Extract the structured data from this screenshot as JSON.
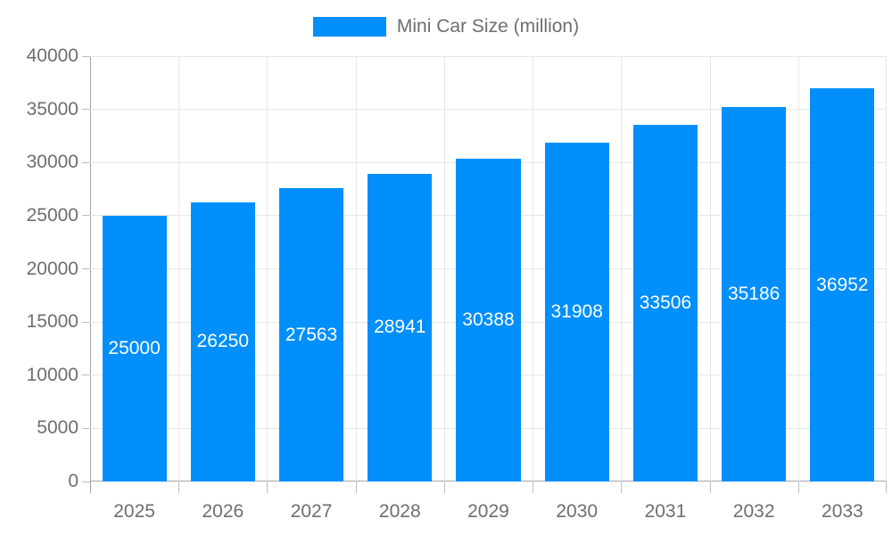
{
  "chart_data": {
    "type": "bar",
    "title": "",
    "legend": {
      "position": "top",
      "label": "Mini Car Size (million)"
    },
    "series": [
      {
        "name": "Mini Car Size (million)",
        "values": [
          25000,
          26250,
          27563,
          28941,
          30388,
          31908,
          33506,
          35186,
          36952
        ]
      }
    ],
    "categories": [
      "2025",
      "2026",
      "2027",
      "2028",
      "2029",
      "2030",
      "2031",
      "2032",
      "2033"
    ],
    "xlabel": "",
    "ylabel": "",
    "ylim": [
      0,
      40000
    ],
    "ytick_step": 5000,
    "yticks": [
      "0",
      "5000",
      "10000",
      "15000",
      "20000",
      "25000",
      "30000",
      "35000",
      "40000"
    ],
    "grid": true,
    "bar_labels_visible": true,
    "colors": {
      "bar": "#008FFB",
      "bar_label_text": "#ffffff",
      "grid_line": "#e6e6e6",
      "axis_line": "#a6a6a6",
      "tick_mark": "#bdbdbd",
      "axis_text": "#6e6e6e",
      "legend_text": "#6e6e6e",
      "background": "#ffffff"
    }
  }
}
